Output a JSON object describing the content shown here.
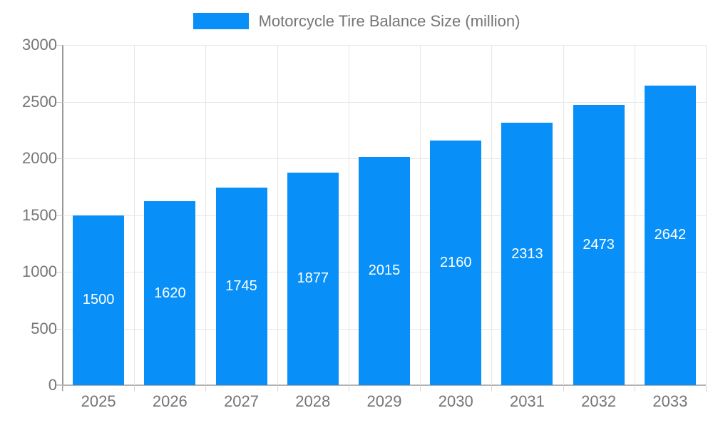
{
  "chart_data": {
    "type": "bar",
    "title": "Motorcycle Tire Balance Size (million)",
    "categories": [
      "2025",
      "2026",
      "2027",
      "2028",
      "2029",
      "2030",
      "2031",
      "2032",
      "2033"
    ],
    "values": [
      1500,
      1620,
      1745,
      1877,
      2015,
      2160,
      2313,
      2473,
      2642
    ],
    "xlabel": "",
    "ylabel": "",
    "ylim": [
      0,
      3000
    ],
    "yticks": [
      0,
      500,
      1000,
      1500,
      2000,
      2500,
      3000
    ],
    "grid": true,
    "legend_position": "top-center",
    "bar_color": "#0890f8",
    "bar_value_label_color": "#ffffff",
    "axis_text_color": "#757575",
    "grid_color": "#e6e6e6",
    "axis_line_color": "#999999"
  }
}
